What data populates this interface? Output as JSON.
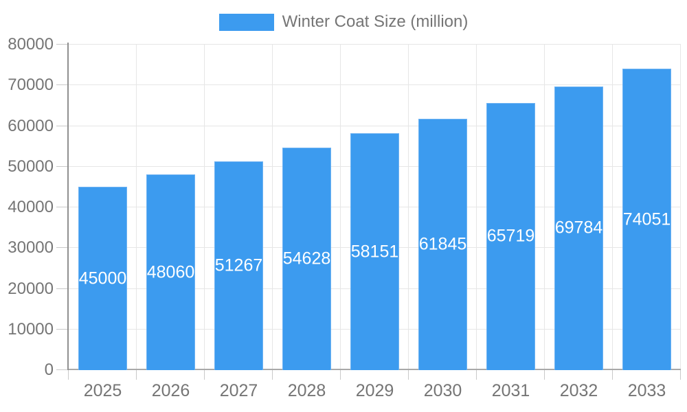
{
  "legend": {
    "label": "Winter Coat Size (million)"
  },
  "chart_data": {
    "type": "bar",
    "title": "",
    "xlabel": "",
    "ylabel": "",
    "categories": [
      "2025",
      "2026",
      "2027",
      "2028",
      "2029",
      "2030",
      "2031",
      "2032",
      "2033"
    ],
    "series": [
      {
        "name": "Winter Coat Size (million)",
        "values": [
          45000,
          48060,
          51267,
          54628,
          58151,
          61845,
          65719,
          69784,
          74051
        ]
      }
    ],
    "value_labels": [
      "45000",
      "48060",
      "51267",
      "54628",
      "58151",
      "61845",
      "65719",
      "69784",
      "74051"
    ],
    "ylim": [
      0,
      80000
    ],
    "ytick_step": 10000,
    "ytick_labels": [
      "0",
      "10000",
      "20000",
      "30000",
      "40000",
      "50000",
      "60000",
      "70000",
      "80000"
    ],
    "grid": true,
    "legend_position": "top",
    "value_label_position": "middle-of-bar",
    "colors": {
      "bar": "#3C9BEF",
      "bar_edge": "#6FB3F2",
      "value_label": "#FFFFFF",
      "axis_text": "#757575",
      "grid_line": "#E6E6E6",
      "tick_line": "#C9C9C9",
      "y_axis_line": "#909090",
      "x_axis_line": "#A8A8A8",
      "background": "#FFFFFF"
    }
  }
}
